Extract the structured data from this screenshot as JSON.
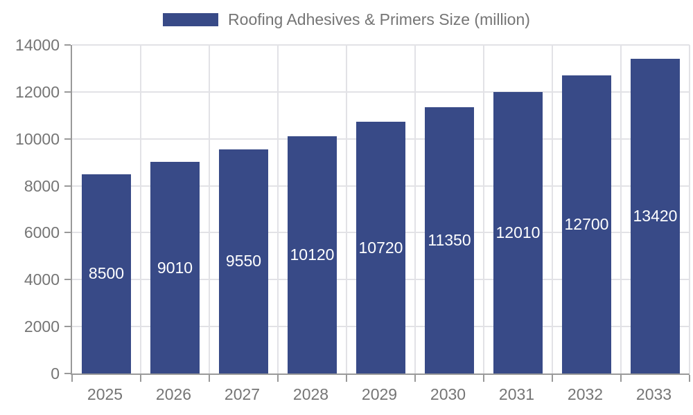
{
  "chart_data": {
    "type": "bar",
    "title": "",
    "legend": "Roofing Adhesives & Primers Size (million)",
    "legend_position": "top",
    "categories": [
      "2025",
      "2026",
      "2027",
      "2028",
      "2029",
      "2030",
      "2031",
      "2032",
      "2033"
    ],
    "values": [
      8500,
      9010,
      9550,
      10120,
      10720,
      11350,
      12010,
      12700,
      13420
    ],
    "xlabel": "",
    "ylabel": "",
    "ylim": [
      0,
      14000
    ],
    "yticks": [
      0,
      2000,
      4000,
      6000,
      8000,
      10000,
      12000,
      14000
    ],
    "grid": true,
    "bar_color": "#384A87",
    "bar_value_label_color": "#ffffff",
    "axis_text_color": "#757575",
    "grid_color": "#E2E2E6",
    "axis_line_color": "#999999"
  }
}
